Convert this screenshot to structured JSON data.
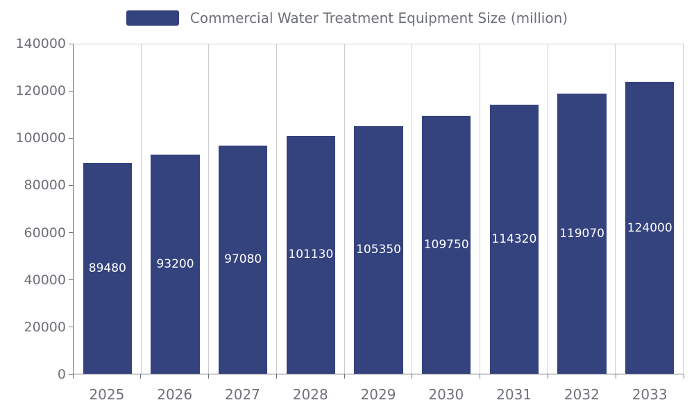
{
  "legend": {
    "label": "Commercial Water Treatment Equipment Size (million)"
  },
  "colors": {
    "bar": "#34427E",
    "axis_text": "#6E7079",
    "grid_line": "#CCCCCC",
    "bar_label": "#FFFFFF"
  },
  "chart_data": {
    "type": "bar",
    "title": "Commercial Water Treatment Equipment Size (million)",
    "categories": [
      "2025",
      "2026",
      "2027",
      "2028",
      "2029",
      "2030",
      "2031",
      "2032",
      "2033"
    ],
    "values": [
      89480,
      93200,
      97080,
      101130,
      105350,
      109750,
      114320,
      119070,
      124000
    ],
    "xlabel": "",
    "ylabel": "",
    "ylim": [
      0,
      140000
    ],
    "y_ticks": [
      0,
      20000,
      40000,
      60000,
      80000,
      100000,
      120000,
      140000
    ],
    "grid": true,
    "legend_position": "top",
    "bar_label_position": "inside-middle"
  }
}
